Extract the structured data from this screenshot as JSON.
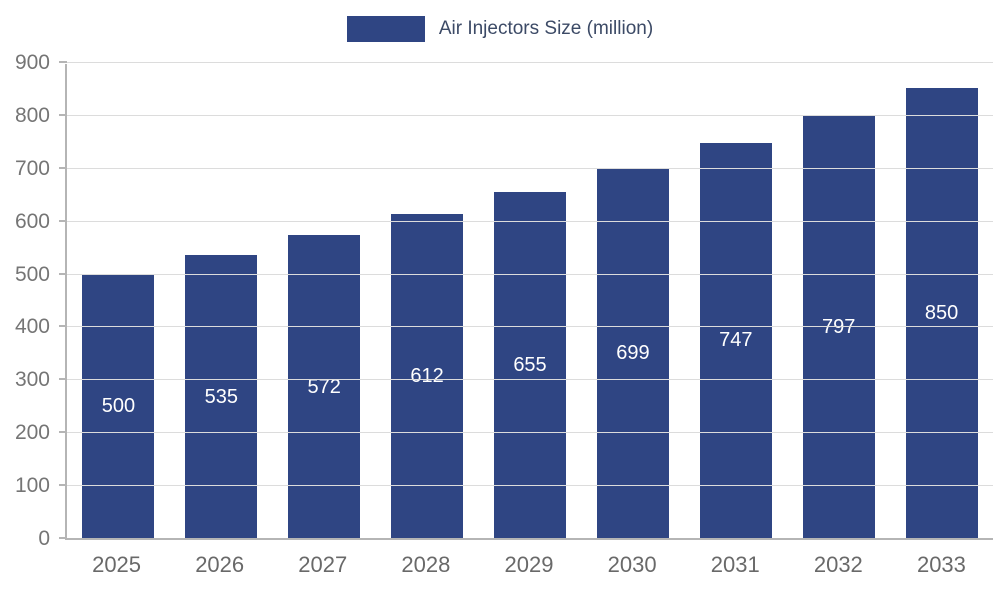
{
  "legend": {
    "label": "Air Injectors Size (million)"
  },
  "colors": {
    "bar": "#2f4583",
    "value_label": "#ffffff",
    "gridline": "#dcdcdc",
    "axis": "#b5b5b5",
    "tick_text": "#757575",
    "legend_text": "#3c4a66",
    "background": "#ffffff"
  },
  "chart_data": {
    "type": "bar",
    "title": "Air Injectors Size (million)",
    "categories": [
      "2025",
      "2026",
      "2027",
      "2028",
      "2029",
      "2030",
      "2031",
      "2032",
      "2033"
    ],
    "values": [
      500,
      535,
      572,
      612,
      655,
      699,
      747,
      797,
      850
    ],
    "series": [
      {
        "name": "Air Injectors Size (million)",
        "values": [
          500,
          535,
          572,
          612,
          655,
          699,
          747,
          797,
          850
        ]
      }
    ],
    "xlabel": "",
    "ylabel": "",
    "ylim": [
      0,
      900
    ],
    "ytick_interval": 100,
    "yticks": [
      0,
      100,
      200,
      300,
      400,
      500,
      600,
      700,
      800,
      900
    ],
    "grid": true,
    "legend_position": "top",
    "value_labels": "inside-center"
  }
}
